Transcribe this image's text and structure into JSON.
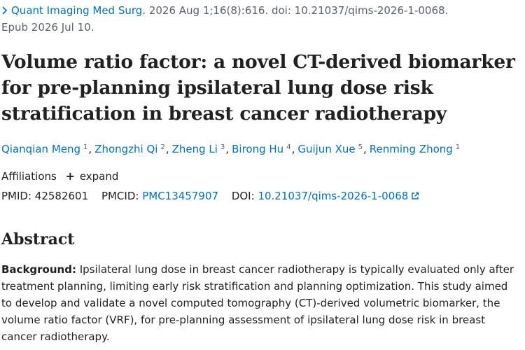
{
  "citation": {
    "journal": "Quant Imaging Med Surg.",
    "details": " 2026 Aug 1;16(8):616. doi: 10.21037/qims-2026-1-0068.",
    "epub": "Epub 2026 Jul 10."
  },
  "article": {
    "title": "Volume ratio factor: a novel CT-derived biomarker for pre-planning ipsilateral lung dose risk stratification in breast cancer radiotherapy"
  },
  "authors": [
    {
      "name": "Qianqian Meng",
      "aff": "1"
    },
    {
      "name": "Zhongzhi Qi",
      "aff": "2"
    },
    {
      "name": "Zheng Li",
      "aff": "3"
    },
    {
      "name": "Birong Hu",
      "aff": "4"
    },
    {
      "name": "Guijun Xue",
      "aff": "5"
    },
    {
      "name": "Renming Zhong",
      "aff": "1"
    }
  ],
  "affiliations": {
    "label": "Affiliations",
    "expand": "expand"
  },
  "identifiers": {
    "pmid_label": "PMID:",
    "pmid": "42582601",
    "pmcid_label": "PMCID:",
    "pmcid": "PMC13457907",
    "doi_label": "DOI:",
    "doi": "10.21037/qims-2026-1-0068"
  },
  "abstract": {
    "heading": "Abstract",
    "background_label": "Background:",
    "background_text": " Ipsilateral lung dose in breast cancer radiotherapy is typically evaluated only after treatment planning, limiting early risk stratification and planning optimization. This study aimed to develop and validate a novel computed tomography (CT)-derived volumetric biomarker, the volume ratio factor (VRF), for pre-planning assessment of ipsilateral lung dose risk in breast cancer radiotherapy."
  },
  "colors": {
    "link": "#0071bc",
    "text": "#212121",
    "muted": "#5b616b"
  },
  "icons": {
    "journal_chevron": "chevron-right-icon",
    "doi_external": "external-link-icon",
    "expand": "plus-icon"
  }
}
